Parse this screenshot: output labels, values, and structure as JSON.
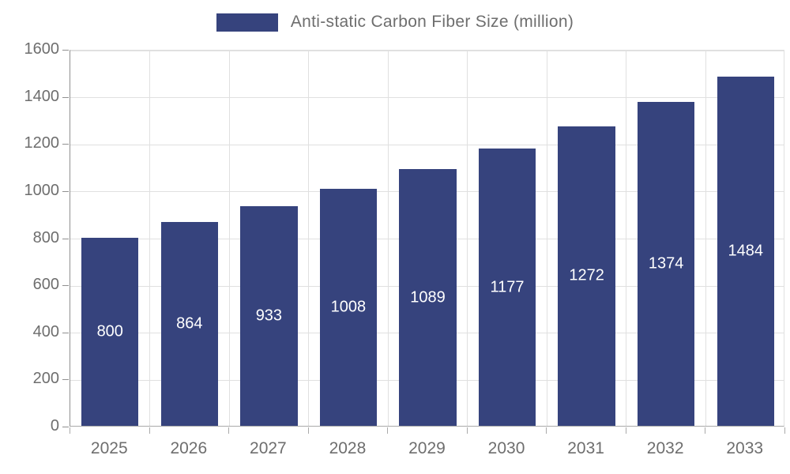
{
  "legend": {
    "label": "Anti-static Carbon Fiber Size (million)"
  },
  "chart_data": {
    "type": "bar",
    "title": "Anti-static Carbon Fiber Size (million)",
    "categories": [
      "2025",
      "2026",
      "2027",
      "2028",
      "2029",
      "2030",
      "2031",
      "2032",
      "2033"
    ],
    "values": [
      800,
      864,
      933,
      1008,
      1089,
      1177,
      1272,
      1374,
      1484
    ],
    "xlabel": "",
    "ylabel": "",
    "ylim": [
      0,
      1600
    ],
    "yticks": [
      0,
      200,
      400,
      600,
      800,
      1000,
      1200,
      1400,
      1600
    ],
    "grid": true,
    "legend_position": "top-center",
    "value_labels": "inside-middle",
    "colors": {
      "bar": "#36437D",
      "value_label": "#ffffff",
      "gridline": "#e0e0e0",
      "axis_line": "#909090",
      "tick_text": "#6e6e6e"
    }
  }
}
